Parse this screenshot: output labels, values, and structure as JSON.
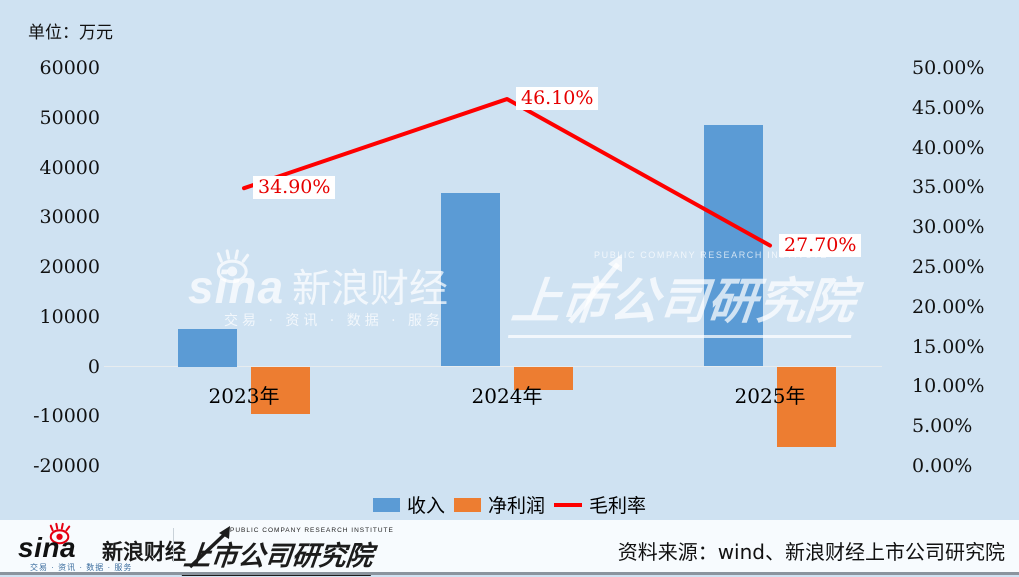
{
  "unit_label": "单位：万元",
  "chart_data": {
    "type": "bar",
    "subtype": "combo-bar-line",
    "title": "",
    "categories": [
      "2023年",
      "2024年",
      "2025年"
    ],
    "series": [
      {
        "name": "收入",
        "type": "bar",
        "axis": "left",
        "color": "#5b9bd5",
        "values": [
          7500,
          34900,
          48600
        ]
      },
      {
        "name": "净利润",
        "type": "bar",
        "axis": "left",
        "color": "#ed7d31",
        "values": [
          -9600,
          -4700,
          -16100
        ]
      },
      {
        "name": "毛利率",
        "type": "line",
        "axis": "right",
        "color": "#fe0000",
        "values": [
          34.9,
          46.1,
          27.7
        ],
        "point_labels": [
          "34.90%",
          "46.10%",
          "27.70%"
        ]
      }
    ],
    "left_axis": {
      "unit": "万元",
      "min": -20000,
      "max": 60000,
      "tick_values": [
        60000,
        50000,
        40000,
        30000,
        20000,
        10000,
        0,
        -10000,
        -20000
      ],
      "tick_labels": [
        "60000",
        "50000",
        "40000",
        "30000",
        "20000",
        "10000",
        "0",
        "-10000",
        "-20000"
      ]
    },
    "right_axis": {
      "min": 0,
      "max": 50,
      "tick_values": [
        50,
        45,
        40,
        35,
        30,
        25,
        20,
        15,
        10,
        5,
        0
      ],
      "tick_labels": [
        "50.00%",
        "45.00%",
        "40.00%",
        "35.00%",
        "30.00%",
        "25.00%",
        "20.00%",
        "15.00%",
        "10.00%",
        "5.00%",
        "0.00%"
      ]
    },
    "legend_position": "bottom",
    "grid": "zero-line-only"
  },
  "watermarks": {
    "sina": {
      "brand": "sina",
      "cn": "新浪财经",
      "tagline": "交易 · 资讯 · 数据 · 服务"
    },
    "institute": {
      "en": "PUBLIC COMPANY RESEARCH INSTITUTE",
      "cn": "上市公司研究院"
    }
  },
  "footer": {
    "sina_logo": {
      "brand": "sina",
      "cn": "新浪财经",
      "tagline": "交易 · 资讯 · 数据 · 服务"
    },
    "institute_logo": {
      "en": "PUBLIC COMPANY RESEARCH INSTITUTE",
      "cn": "上市公司研究院"
    },
    "source": "资料来源：wind、新浪财经上市公司研究院"
  },
  "colors": {
    "background": "#cfe2f2",
    "bar_blue": "#5b9bd5",
    "bar_orange": "#ed7d31",
    "line_red": "#fe0000",
    "point_label_red": "#e60000",
    "footer_strip": "#f7fbfe",
    "footer_bar": "#8b949e"
  }
}
